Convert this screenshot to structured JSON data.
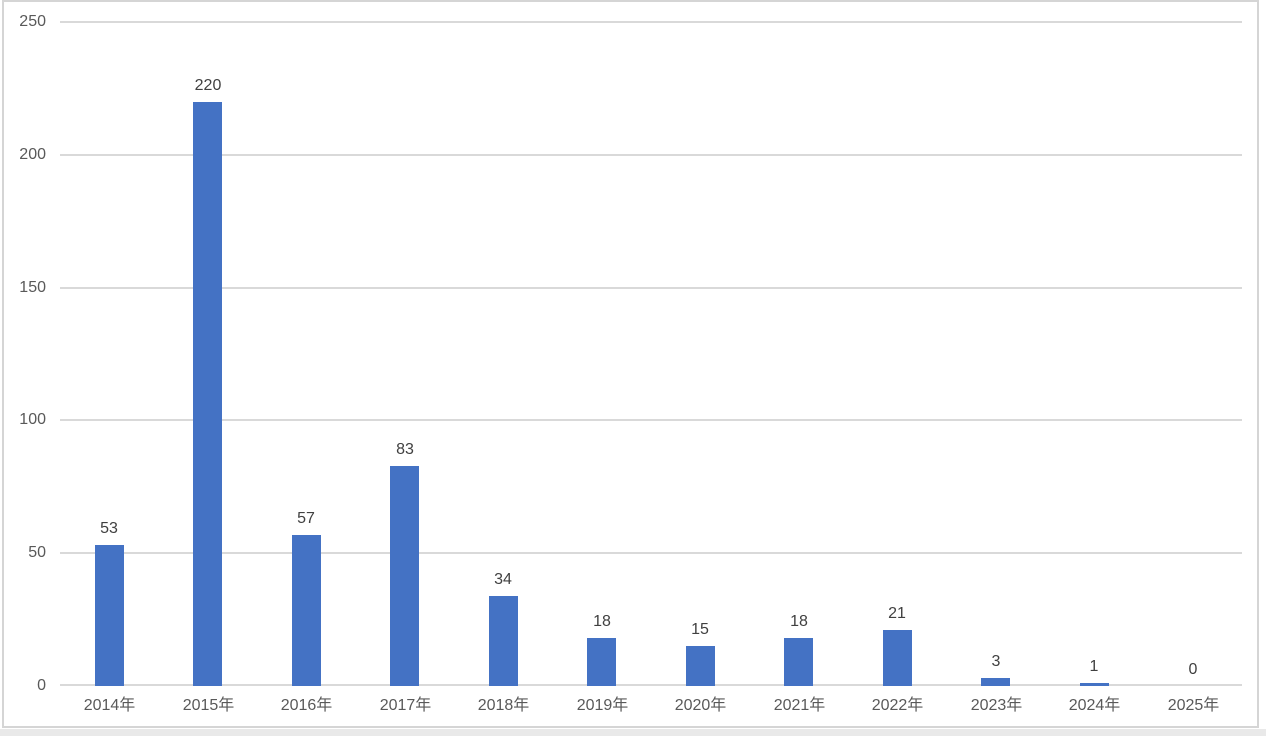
{
  "chart_data": {
    "type": "bar",
    "title": "",
    "xlabel": "",
    "ylabel": "",
    "categories": [
      "2014年",
      "2015年",
      "2016年",
      "2017年",
      "2018年",
      "2019年",
      "2020年",
      "2021年",
      "2022年",
      "2023年",
      "2024年",
      "2025年"
    ],
    "values": [
      53,
      220,
      57,
      83,
      34,
      18,
      15,
      18,
      21,
      3,
      1,
      0
    ],
    "data_labels": [
      "53",
      "220",
      "57",
      "83",
      "34",
      "18",
      "15",
      "18",
      "21",
      "3",
      "1",
      "0"
    ],
    "ylim": [
      0,
      250
    ],
    "yticks": [
      0,
      50,
      100,
      150,
      200,
      250
    ],
    "ytick_labels": [
      "0",
      "50",
      "100",
      "150",
      "200",
      "250"
    ],
    "grid": "horizontal-major",
    "legend": "none",
    "colors": {
      "bar": "#4472C4",
      "gridline": "#D9D9D9",
      "axis_line": "#D9D9D9",
      "axis_tick_label": "#595959",
      "data_label": "#404040",
      "frame_border": "#D5D5D5",
      "background": "#FFFFFF"
    }
  }
}
